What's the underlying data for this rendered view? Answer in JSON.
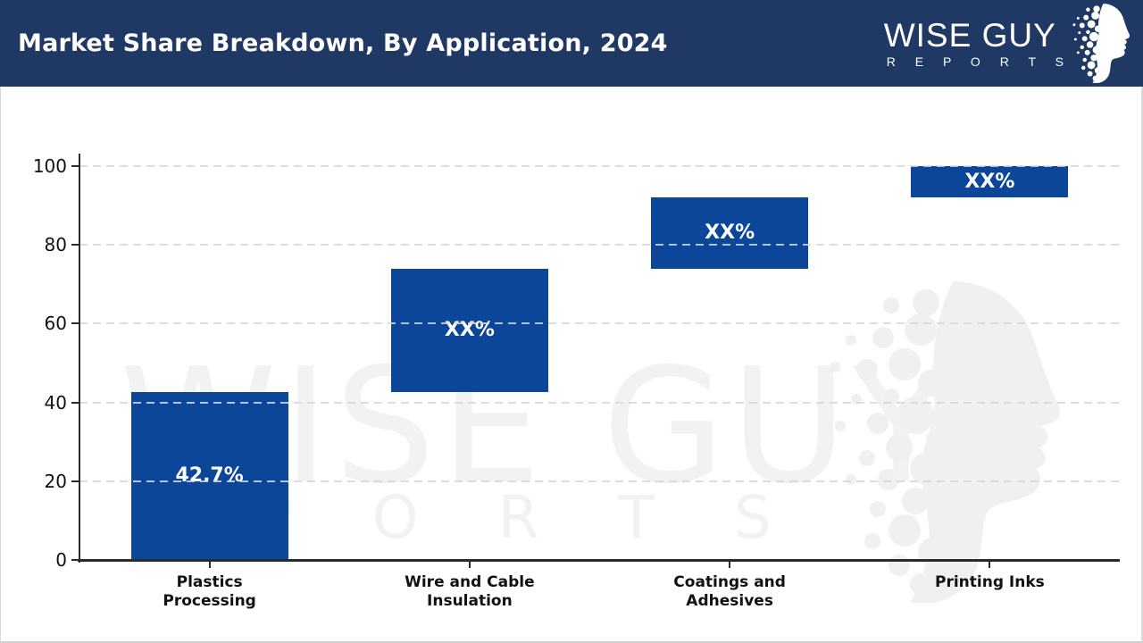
{
  "header": {
    "title": "Market Share Breakdown, By Application, 2024",
    "logo": {
      "line1": "WISE GUY",
      "line2": "R E P O R T S"
    },
    "background_color": "#1f3864"
  },
  "watermark": {
    "line1": "WISE GUY",
    "line2": "P O R T S"
  },
  "chart_data": {
    "type": "bar",
    "subtype": "waterfall",
    "title": "Market Share Breakdown, By Application, 2024",
    "categories": [
      "Plastics Processing",
      "Wire and Cable Insulation",
      "Coatings and Adhesives",
      "Printing Inks"
    ],
    "category_label_lines": [
      [
        "Plastics",
        "Processing"
      ],
      [
        "Wire and Cable",
        "Insulation"
      ],
      [
        "Coatings and",
        "Adhesives"
      ],
      [
        "Printing Inks"
      ]
    ],
    "segments": [
      {
        "category": "Plastics Processing",
        "start": 0,
        "end": 42.7,
        "label": "42.7%"
      },
      {
        "category": "Wire and Cable Insulation",
        "start": 42.7,
        "end": 74,
        "label": "XX%"
      },
      {
        "category": "Coatings and Adhesives",
        "start": 74,
        "end": 92,
        "label": "XX%"
      },
      {
        "category": "Printing Inks",
        "start": 92,
        "end": 100,
        "label": "XX%"
      }
    ],
    "xlabel": "",
    "ylabel": "",
    "ylim": [
      0,
      100
    ],
    "yticks": [
      0,
      20,
      40,
      60,
      80,
      100
    ],
    "grid": true,
    "grid_style": "dashed",
    "legend": null,
    "bar_color": "#0b4699",
    "bar_label_color": "#ffffff",
    "axis_color": "#2b2b2b"
  }
}
